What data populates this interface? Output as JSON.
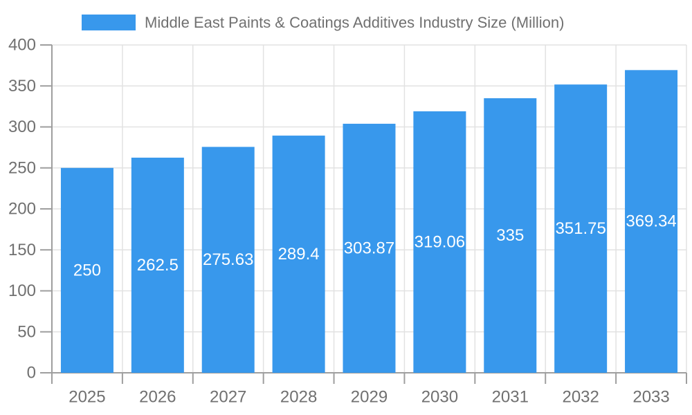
{
  "legend": {
    "label": "Middle East Paints & Coatings Additives Industry Size (Million)"
  },
  "chart_data": {
    "type": "bar",
    "title": "Middle East Paints & Coatings Additives Industry Size (Million)",
    "categories": [
      "2025",
      "2026",
      "2027",
      "2028",
      "2029",
      "2030",
      "2031",
      "2032",
      "2033"
    ],
    "values": [
      250,
      262.5,
      275.63,
      289.4,
      303.87,
      319.06,
      335,
      351.75,
      369.34
    ],
    "value_labels": [
      "250",
      "262.5",
      "275.63",
      "289.4",
      "303.87",
      "319.06",
      "335",
      "351.75",
      "369.34"
    ],
    "xlabel": "",
    "ylabel": "",
    "ylim": [
      0,
      400
    ],
    "ytick_step": 50,
    "ytick_labels": [
      "0",
      "50",
      "100",
      "150",
      "200",
      "250",
      "300",
      "350",
      "400"
    ],
    "grid": true,
    "legend_position": "top-left",
    "bar_label_position": "inside-center",
    "colors": {
      "bar": "#3898ec",
      "bar_label": "#ffffff",
      "axis_line": "#9e9e9e",
      "grid_line": "#e2e2e2",
      "tick_text": "#707070",
      "legend_text": "#707070",
      "background": "#ffffff"
    }
  }
}
